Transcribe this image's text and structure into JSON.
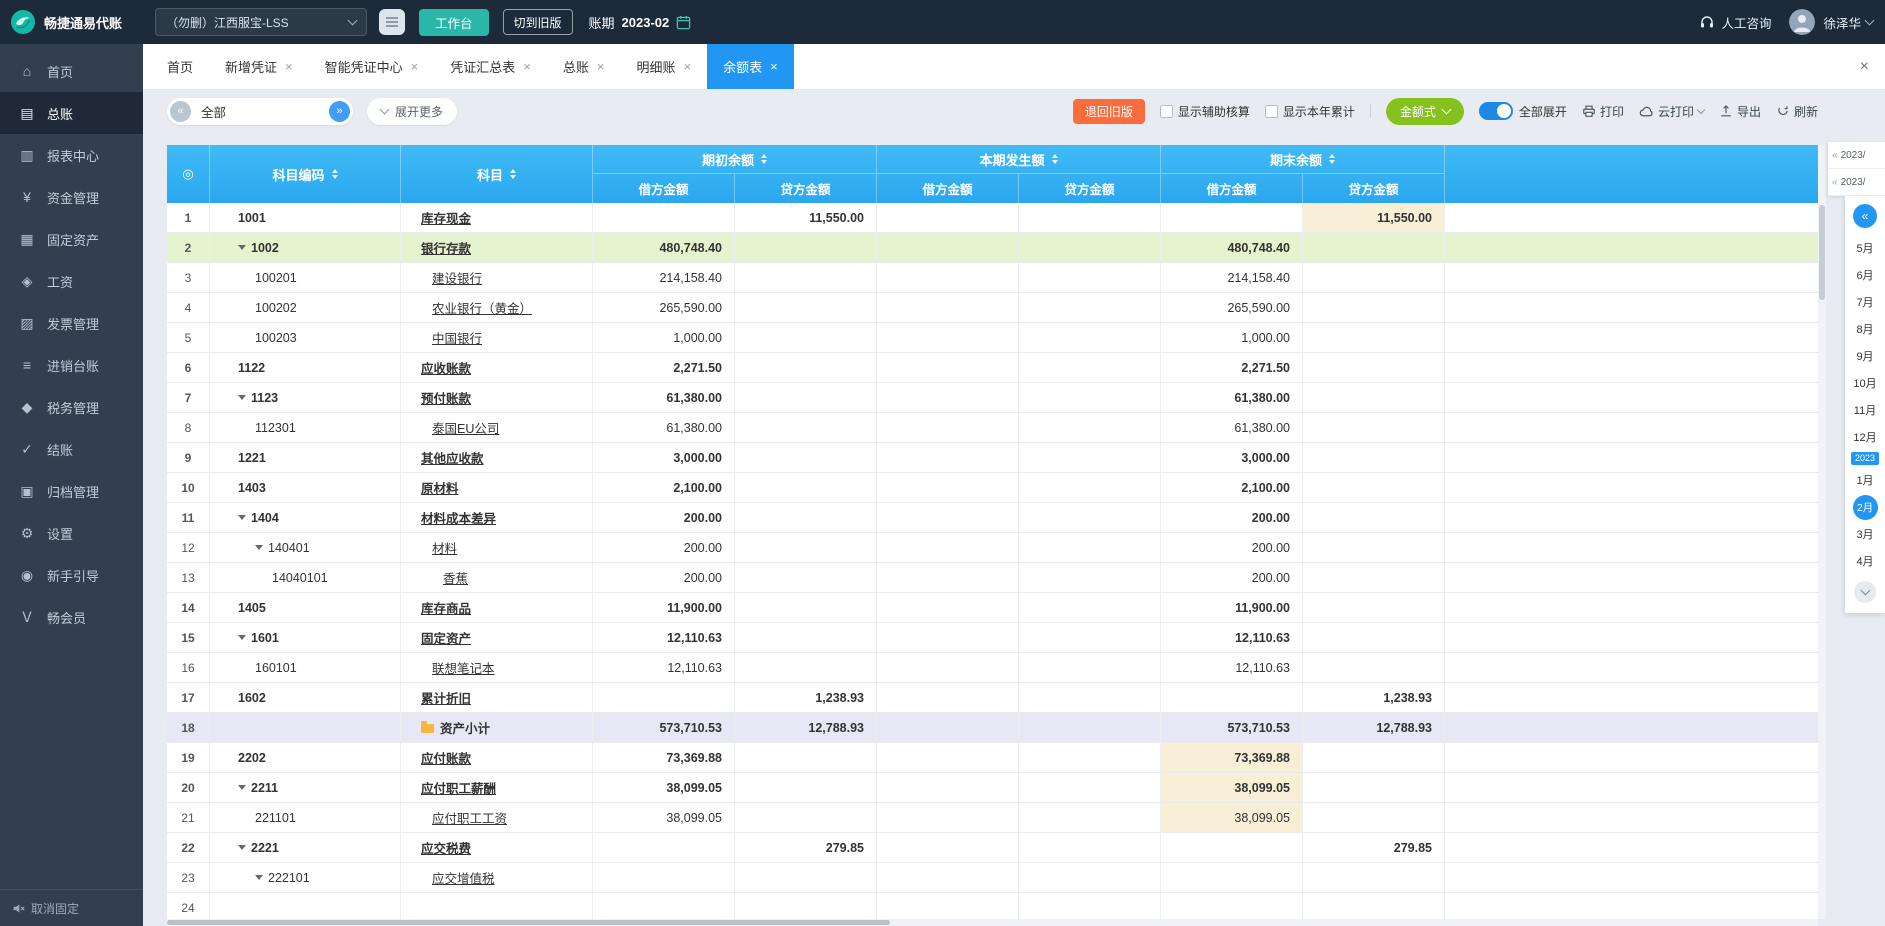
{
  "colors": {
    "accent_blue": "#2196f3",
    "table_header_blue": "#35b0f1",
    "green_button": "#85c21e",
    "orange_button": "#fb6d3d",
    "teal_button": "#2ab7a9",
    "row_highlight_green": "#e6f3cf",
    "row_highlight_purple": "#e7e7f6",
    "cell_highlight_cream": "#f9eed6"
  },
  "topbar": {
    "logo_text": "畅捷通易代账",
    "company": "（勿删）江西服宝-LSS",
    "workbench": "工作台",
    "switch_old": "切到旧版",
    "period_label": "账期",
    "period_value": "2023-02",
    "support": "人工咨询",
    "username": "徐泽华"
  },
  "sidebar": {
    "items": [
      {
        "label": "首页",
        "icon": "home-icon",
        "active": false
      },
      {
        "label": "总账",
        "icon": "ledger-icon",
        "active": true
      },
      {
        "label": "报表中心",
        "icon": "report-icon",
        "active": false
      },
      {
        "label": "资金管理",
        "icon": "funds-icon",
        "active": false
      },
      {
        "label": "固定资产",
        "icon": "fixed-assets-icon",
        "active": false
      },
      {
        "label": "工资",
        "icon": "salary-icon",
        "active": false
      },
      {
        "label": "发票管理",
        "icon": "invoice-icon",
        "active": false
      },
      {
        "label": "进销台账",
        "icon": "inventory-icon",
        "active": false
      },
      {
        "label": "税务管理",
        "icon": "tax-icon",
        "active": false
      },
      {
        "label": "结账",
        "icon": "closing-icon",
        "active": false
      },
      {
        "label": "归档管理",
        "icon": "archive-icon",
        "active": false
      },
      {
        "label": "设置",
        "icon": "settings-icon",
        "active": false
      },
      {
        "label": "新手引导",
        "icon": "guide-icon",
        "active": false
      },
      {
        "label": "畅会员",
        "icon": "member-icon",
        "active": false
      }
    ],
    "unpin": "取消固定"
  },
  "tabs": [
    {
      "label": "首页",
      "closable": false,
      "active": false
    },
    {
      "label": "新增凭证",
      "closable": true,
      "active": false
    },
    {
      "label": "智能凭证中心",
      "closable": true,
      "active": false
    },
    {
      "label": "凭证汇总表",
      "closable": true,
      "active": false
    },
    {
      "label": "总账",
      "closable": true,
      "active": false
    },
    {
      "label": "明细账",
      "closable": true,
      "active": false
    },
    {
      "label": "余额表",
      "closable": true,
      "active": true
    }
  ],
  "toolbar": {
    "filter_value": "全部",
    "expand_more": "展开更多",
    "back_to_old": "退回旧版",
    "show_aux": "显示辅助核算",
    "show_ytd": "显示本年累计",
    "amount_style": "金额式",
    "expand_all": "全部展开",
    "print": "打印",
    "cloud_print": "云打印",
    "export": "导出",
    "refresh": "刷新"
  },
  "table": {
    "headers": {
      "code": "科目编码",
      "subject": "科目",
      "opening": "期初余额",
      "current": "本期发生额",
      "closing": "期末余额",
      "debit": "借方金额",
      "credit": "贷方金额"
    },
    "rows": [
      {
        "n": "1",
        "code": "1001",
        "subj": "库存现金",
        "b": true,
        "v": [
          "",
          "11,550.00",
          "",
          "",
          "",
          "11,550.00"
        ],
        "hl": [
          5
        ]
      },
      {
        "n": "2",
        "code": "1002",
        "tri": true,
        "subj": "银行存款",
        "b": true,
        "bg": "green",
        "v": [
          "480,748.40",
          "",
          "",
          "",
          "480,748.40",
          ""
        ]
      },
      {
        "n": "3",
        "code": "100201",
        "ci": 1,
        "subj": "建设银行",
        "si": 1,
        "v": [
          "214,158.40",
          "",
          "",
          "",
          "214,158.40",
          ""
        ]
      },
      {
        "n": "4",
        "code": "100202",
        "ci": 1,
        "subj": "农业银行（黄金）",
        "si": 1,
        "v": [
          "265,590.00",
          "",
          "",
          "",
          "265,590.00",
          ""
        ]
      },
      {
        "n": "5",
        "code": "100203",
        "ci": 1,
        "subj": "中国银行",
        "si": 1,
        "v": [
          "1,000.00",
          "",
          "",
          "",
          "1,000.00",
          ""
        ]
      },
      {
        "n": "6",
        "code": "1122",
        "subj": "应收账款",
        "b": true,
        "v": [
          "2,271.50",
          "",
          "",
          "",
          "2,271.50",
          ""
        ]
      },
      {
        "n": "7",
        "code": "1123",
        "tri": true,
        "subj": "预付账款",
        "b": true,
        "v": [
          "61,380.00",
          "",
          "",
          "",
          "61,380.00",
          ""
        ]
      },
      {
        "n": "8",
        "code": "112301",
        "ci": 1,
        "subj": "泰国EU公司",
        "si": 1,
        "v": [
          "61,380.00",
          "",
          "",
          "",
          "61,380.00",
          ""
        ]
      },
      {
        "n": "9",
        "code": "1221",
        "subj": "其他应收款",
        "b": true,
        "v": [
          "3,000.00",
          "",
          "",
          "",
          "3,000.00",
          ""
        ]
      },
      {
        "n": "10",
        "code": "1403",
        "subj": "原材料",
        "b": true,
        "v": [
          "2,100.00",
          "",
          "",
          "",
          "2,100.00",
          ""
        ]
      },
      {
        "n": "11",
        "code": "1404",
        "tri": true,
        "subj": "材料成本差异",
        "b": true,
        "v": [
          "200.00",
          "",
          "",
          "",
          "200.00",
          ""
        ]
      },
      {
        "n": "12",
        "code": "140401",
        "tri": true,
        "ci": 1,
        "subj": "材料",
        "si": 1,
        "v": [
          "200.00",
          "",
          "",
          "",
          "200.00",
          ""
        ]
      },
      {
        "n": "13",
        "code": "14040101",
        "ci": 2,
        "subj": "香蕉",
        "si": 2,
        "v": [
          "200.00",
          "",
          "",
          "",
          "200.00",
          ""
        ]
      },
      {
        "n": "14",
        "code": "1405",
        "subj": "库存商品",
        "b": true,
        "v": [
          "11,900.00",
          "",
          "",
          "",
          "11,900.00",
          ""
        ]
      },
      {
        "n": "15",
        "code": "1601",
        "tri": true,
        "subj": "固定资产",
        "b": true,
        "v": [
          "12,110.63",
          "",
          "",
          "",
          "12,110.63",
          ""
        ]
      },
      {
        "n": "16",
        "code": "160101",
        "ci": 1,
        "subj": "联想笔记本",
        "si": 1,
        "v": [
          "12,110.63",
          "",
          "",
          "",
          "12,110.63",
          ""
        ]
      },
      {
        "n": "17",
        "code": "1602",
        "subj": "累计折旧",
        "b": true,
        "v": [
          "",
          "1,238.93",
          "",
          "",
          "",
          "1,238.93"
        ]
      },
      {
        "n": "18",
        "code": "",
        "subj": "资产小计",
        "icon": "folder-icon",
        "link": false,
        "b": true,
        "bg": "purple",
        "v": [
          "573,710.53",
          "12,788.93",
          "",
          "",
          "573,710.53",
          "12,788.93"
        ]
      },
      {
        "n": "19",
        "code": "2202",
        "subj": "应付账款",
        "b": true,
        "v": [
          "73,369.88",
          "",
          "",
          "",
          "73,369.88",
          ""
        ],
        "hl": [
          4
        ]
      },
      {
        "n": "20",
        "code": "2211",
        "tri": true,
        "subj": "应付职工薪酬",
        "b": true,
        "v": [
          "38,099.05",
          "",
          "",
          "",
          "38,099.05",
          ""
        ],
        "hl": [
          4
        ]
      },
      {
        "n": "21",
        "code": "221101",
        "ci": 1,
        "subj": "应付职工工资",
        "si": 1,
        "v": [
          "38,099.05",
          "",
          "",
          "",
          "38,099.05",
          ""
        ],
        "hl": [
          4
        ]
      },
      {
        "n": "22",
        "code": "2221",
        "tri": true,
        "subj": "应交税费",
        "b": true,
        "v": [
          "",
          "279.85",
          "",
          "",
          "",
          "279.85"
        ]
      },
      {
        "n": "23",
        "code": "222101",
        "tri": true,
        "ci": 1,
        "subj": "应交增值税",
        "si": 1,
        "v": [
          "",
          "",
          "",
          "",
          "",
          ""
        ]
      },
      {
        "n": "24",
        "code": "",
        "subj": "",
        "v": [
          "",
          "",
          "",
          "",
          "",
          ""
        ]
      }
    ]
  },
  "period_panel": {
    "dates": [
      "2023/",
      "2023/"
    ],
    "year_badge": "2023",
    "months": [
      {
        "label": "5月"
      },
      {
        "label": "6月"
      },
      {
        "label": "7月"
      },
      {
        "label": "8月"
      },
      {
        "label": "9月"
      },
      {
        "label": "10月"
      },
      {
        "label": "11月"
      },
      {
        "label": "12月"
      },
      {
        "label": "1月",
        "badge": "2023"
      },
      {
        "label": "2月",
        "active": true
      },
      {
        "label": "3月"
      },
      {
        "label": "4月"
      }
    ]
  }
}
